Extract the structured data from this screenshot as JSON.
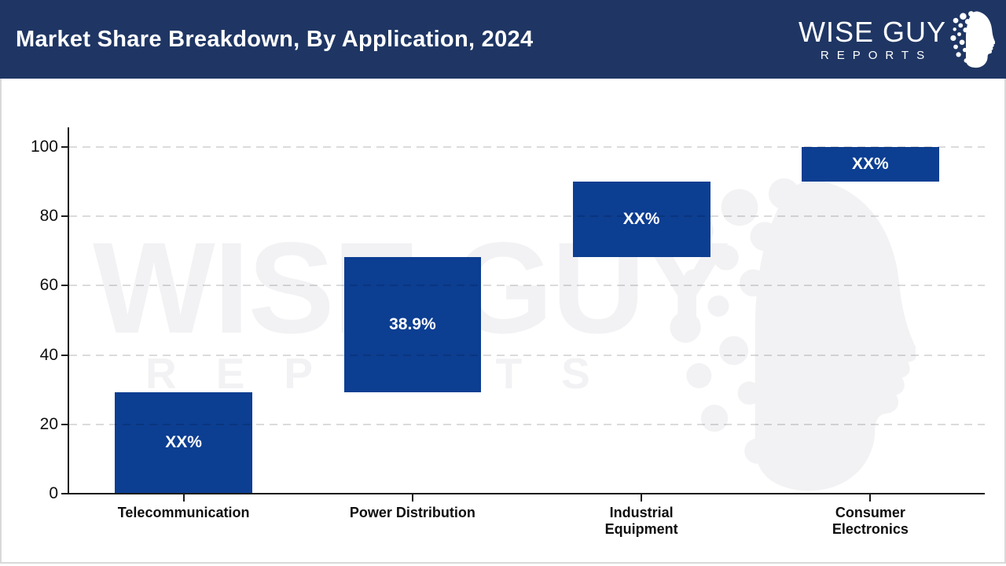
{
  "header": {
    "title": "Market Share Breakdown, By Application, 2024",
    "logo_line1": "WISE GUY",
    "logo_line2": "REPORTS",
    "bg_color": "#1f3664"
  },
  "watermark": {
    "line1": "WISE GUY",
    "line2": "REPORTS"
  },
  "chart_data": {
    "type": "bar",
    "subtype": "floating-waterfall",
    "title": "Market Share Breakdown, By Application, 2024",
    "categories": [
      "Telecommunication",
      "Power Distribution",
      "Industrial Equipment",
      "Consumer Electronics"
    ],
    "segments": [
      {
        "category": "Telecommunication",
        "category_lines": [
          "Telecommunication"
        ],
        "start": 0,
        "end": 29.3,
        "value_label": "XX%"
      },
      {
        "category": "Power Distribution",
        "category_lines": [
          "Power Distribution"
        ],
        "start": 29.3,
        "end": 68.2,
        "value_label": "38.9%"
      },
      {
        "category": "Industrial Equipment",
        "category_lines": [
          "Industrial",
          "Equipment"
        ],
        "start": 68.2,
        "end": 90.1,
        "value_label": "XX%"
      },
      {
        "category": "Consumer Electronics",
        "category_lines": [
          "Consumer",
          "Electronics"
        ],
        "start": 90.1,
        "end": 100,
        "value_label": "XX%"
      }
    ],
    "ylim": [
      0,
      100
    ],
    "yticks": [
      0,
      20,
      40,
      60,
      80,
      100
    ],
    "xlabel": "",
    "ylabel": "",
    "grid": "horizontal-dashed-over-bars",
    "legend": "none",
    "bar_color": "#0c3e92",
    "value_label_color": "#ffffff",
    "axis_color": "#1c1c1c",
    "grid_color": "rgba(0,0,0,0.14)"
  }
}
